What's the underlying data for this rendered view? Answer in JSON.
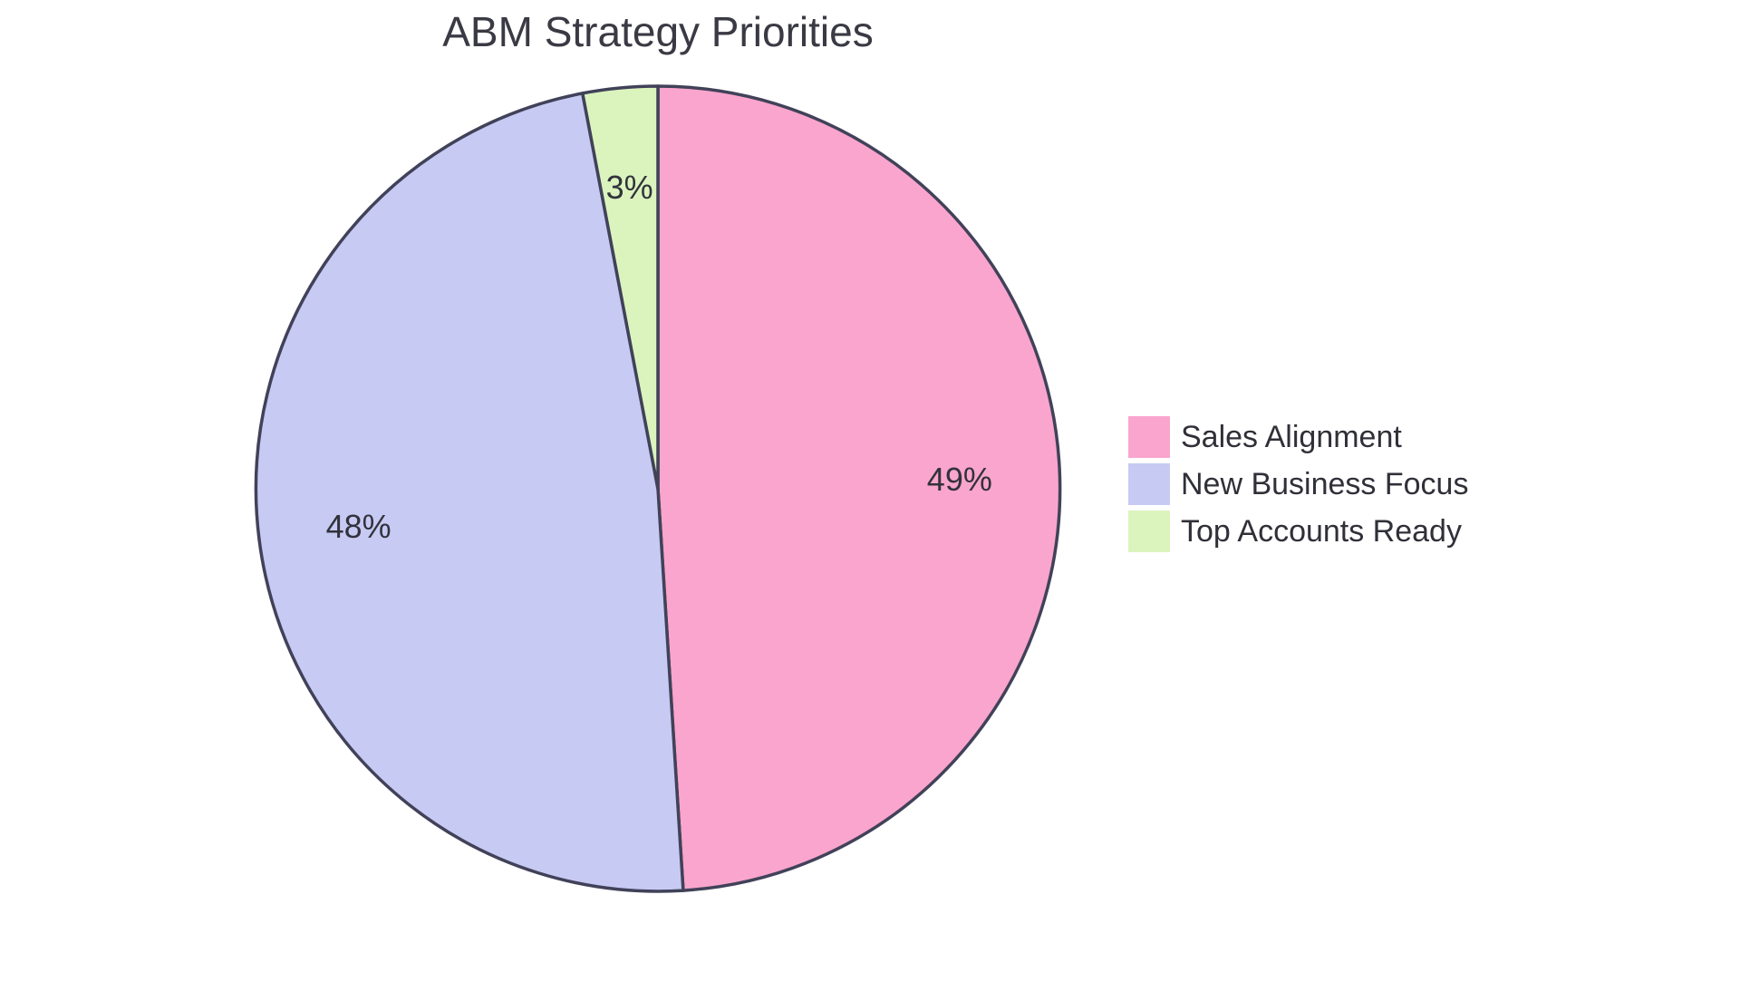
{
  "chart_data": {
    "type": "pie",
    "title": "ABM Strategy Priorities",
    "labels": [
      "Sales Alignment",
      "New Business Focus",
      "Top Accounts Ready"
    ],
    "values": [
      49,
      48,
      3
    ],
    "value_labels": [
      "49%",
      "48%",
      "3%"
    ],
    "colors": [
      "#FAA5CD",
      "#C7CAF3",
      "#DBF4BE"
    ],
    "stroke_color": "#414259",
    "text_color": "#32323C",
    "title_color": "#3A3A44",
    "start_angle": "12-o-clock",
    "direction": "clockwise",
    "legend_position": "right-center",
    "legend_entries": [
      "Sales Alignment",
      "New Business Focus",
      "Top Accounts Ready"
    ]
  }
}
